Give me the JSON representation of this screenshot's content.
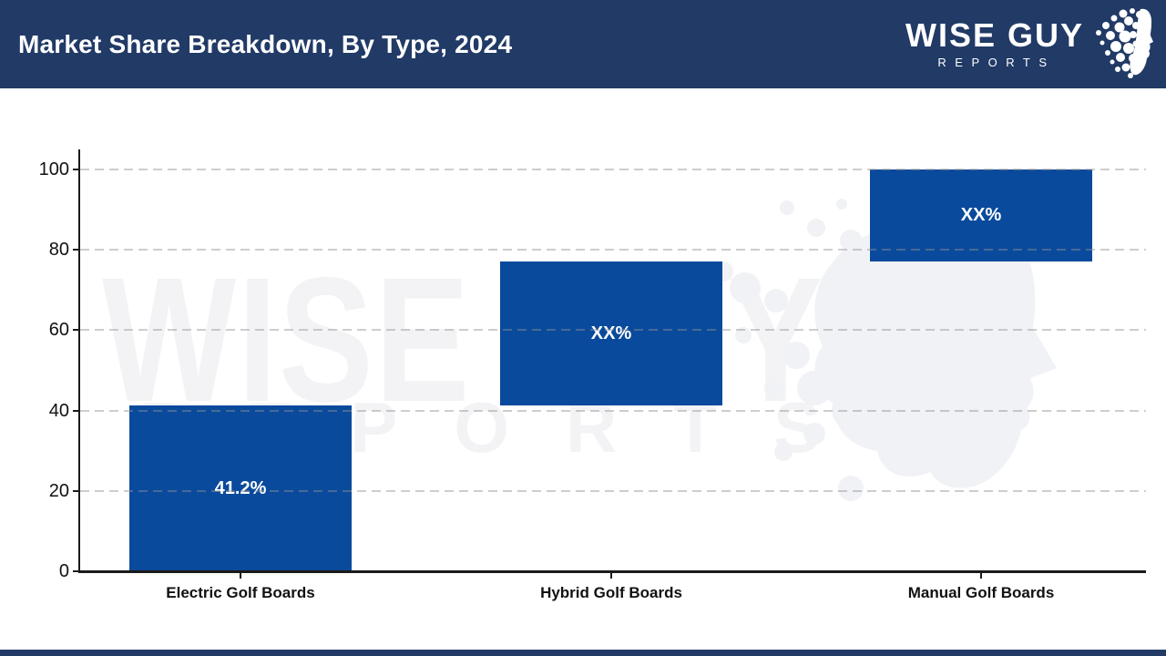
{
  "header": {
    "title": "Market Share Breakdown, By Type, 2024",
    "bg_color": "#213a66",
    "logo": {
      "word": "WISE GUY",
      "sub": "REPORTS"
    }
  },
  "footer": {
    "bg_color": "#213a66"
  },
  "watermark": {
    "word": "WISE GUY",
    "sub": "REPORTS",
    "color": "#f3f3f6"
  },
  "chart_data": {
    "type": "bar",
    "subtype": "stacked-progression",
    "title": "Market Share Breakdown, By Type, 2024",
    "categories": [
      "Electric Golf Boards",
      "Hybrid Golf Boards",
      "Manual Golf Boards"
    ],
    "values": [
      41.2,
      35.8,
      23.0
    ],
    "cumulative_start": [
      0,
      41.2,
      77.0
    ],
    "cumulative_end": [
      41.2,
      77.0,
      100
    ],
    "bar_labels": [
      "41.2%",
      "XX%",
      "XX%"
    ],
    "xlabel": "",
    "ylabel": "",
    "ylim": [
      0,
      100
    ],
    "yticks": [
      0,
      20,
      40,
      60,
      80,
      100
    ],
    "grid": "horizontal-dashed",
    "legend": "none",
    "bar_color": "#0a4a9c",
    "bar_label_color": "#ffffff",
    "gridline_color": "rgba(145,145,145,0.45)",
    "axis_color": "#1a1a1a"
  }
}
